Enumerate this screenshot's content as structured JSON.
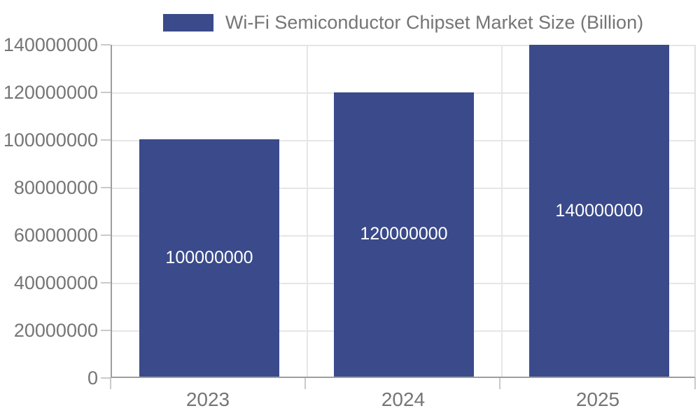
{
  "chart_data": {
    "type": "bar",
    "title": "Wi-Fi Semiconductor Chipset Market Size (Billion)",
    "categories": [
      "2023",
      "2024",
      "2025"
    ],
    "values": [
      100000000,
      120000000,
      140000000
    ],
    "bar_labels": [
      "100000000",
      "120000000",
      "140000000"
    ],
    "yticks": [
      "0",
      "20000000",
      "40000000",
      "60000000",
      "80000000",
      "100000000",
      "120000000",
      "140000000"
    ],
    "ylim": [
      0,
      140000000
    ],
    "xlabel": "",
    "ylabel": "",
    "grid": true,
    "legend_position": "top-center",
    "colors": {
      "bar": "#3a4a8b",
      "bar_label": "#ffffff",
      "text": "#757575",
      "grid": "#e6e6e6",
      "axis": "#9e9e9e",
      "border": "#e0e0e0"
    }
  }
}
